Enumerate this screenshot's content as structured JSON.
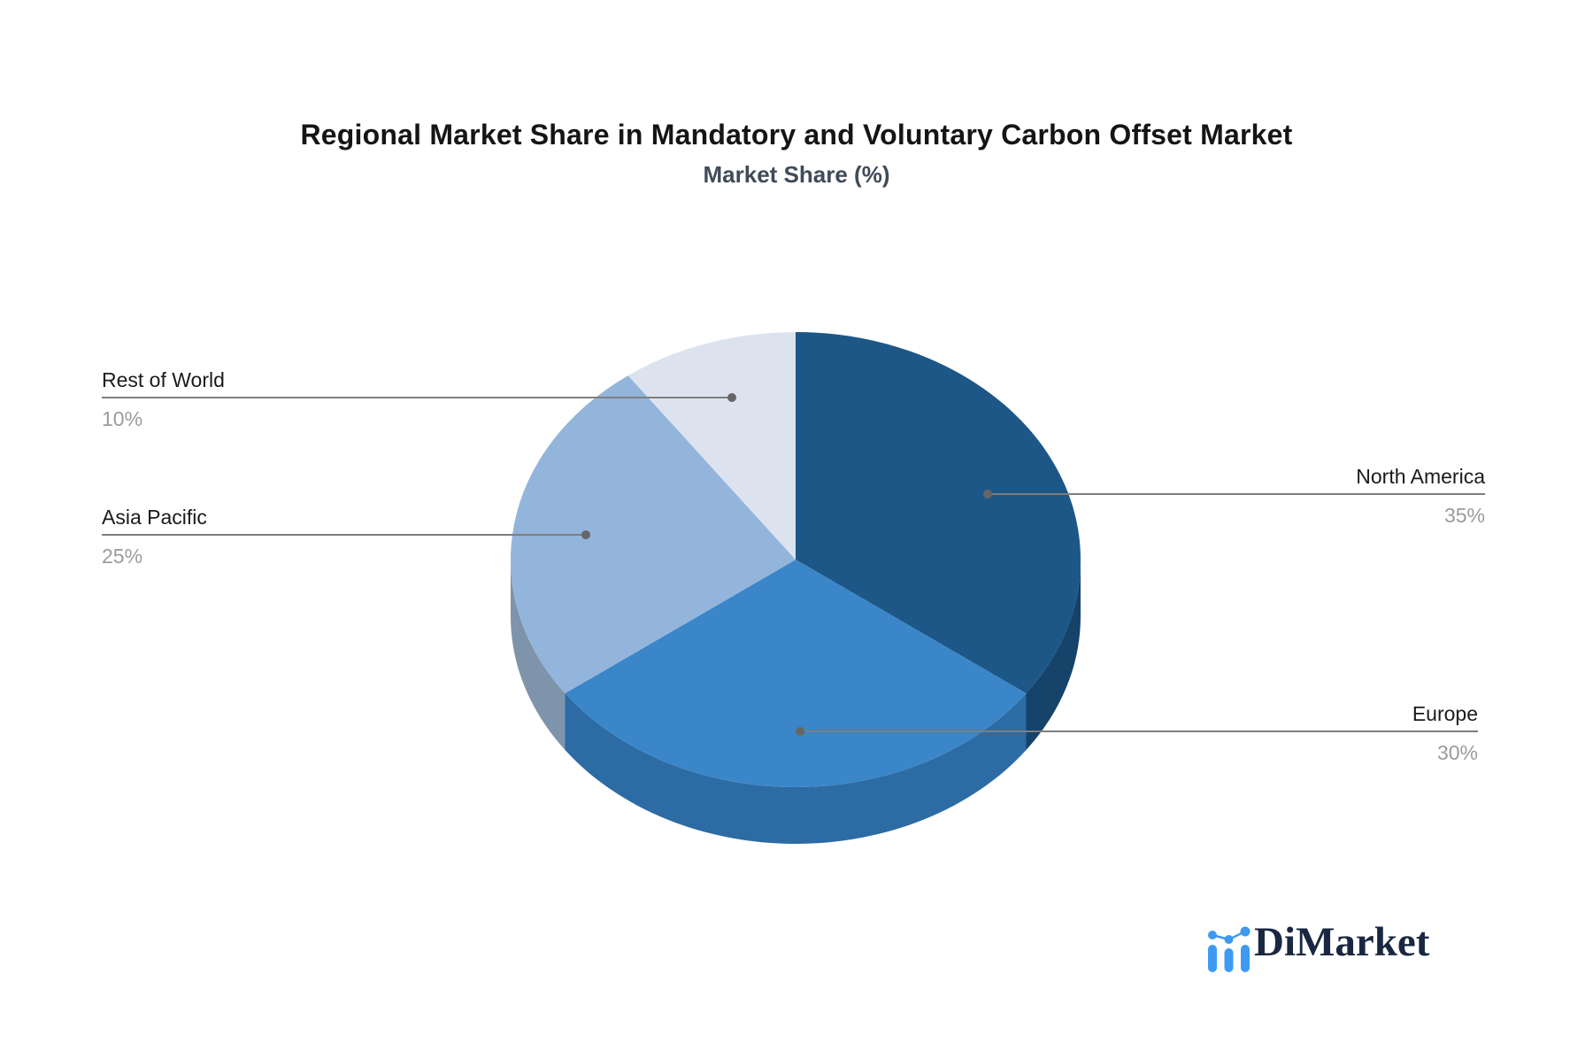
{
  "chart_data": {
    "type": "pie",
    "style": "3d",
    "title": "Regional Market Share in Mandatory and Voluntary Carbon Offset Market",
    "subtitle": "Market Share (%)",
    "unit": "%",
    "start_angle_deg": 90,
    "direction": "clockwise",
    "legend_position": "callout-labels",
    "slices": [
      {
        "label": "North America",
        "value": 35,
        "display": "35%",
        "color": "#1D5787",
        "side_color": "#154369"
      },
      {
        "label": "Europe",
        "value": 30,
        "display": "30%",
        "color": "#3A86C8",
        "side_color": "#2D6BA4"
      },
      {
        "label": "Asia Pacific",
        "value": 25,
        "display": "25%",
        "color": "#93B5DB",
        "side_color": "#7E94AB"
      },
      {
        "label": "Rest of World",
        "value": 10,
        "display": "10%",
        "color": "#DCE3EF",
        "side_color": "#C2CCDD"
      }
    ]
  },
  "callouts": {
    "line_color": "#7E7E7E",
    "dot_color": "#666666",
    "name_color": "#1B1B1B",
    "percent_color": "#9B9B9B"
  },
  "branding": {
    "logo_text": "DiMarket",
    "logo_icon": "bar-line-chart-icon",
    "logo_text_color": "#1A2742",
    "logo_icon_color": "#3E9AF1"
  }
}
